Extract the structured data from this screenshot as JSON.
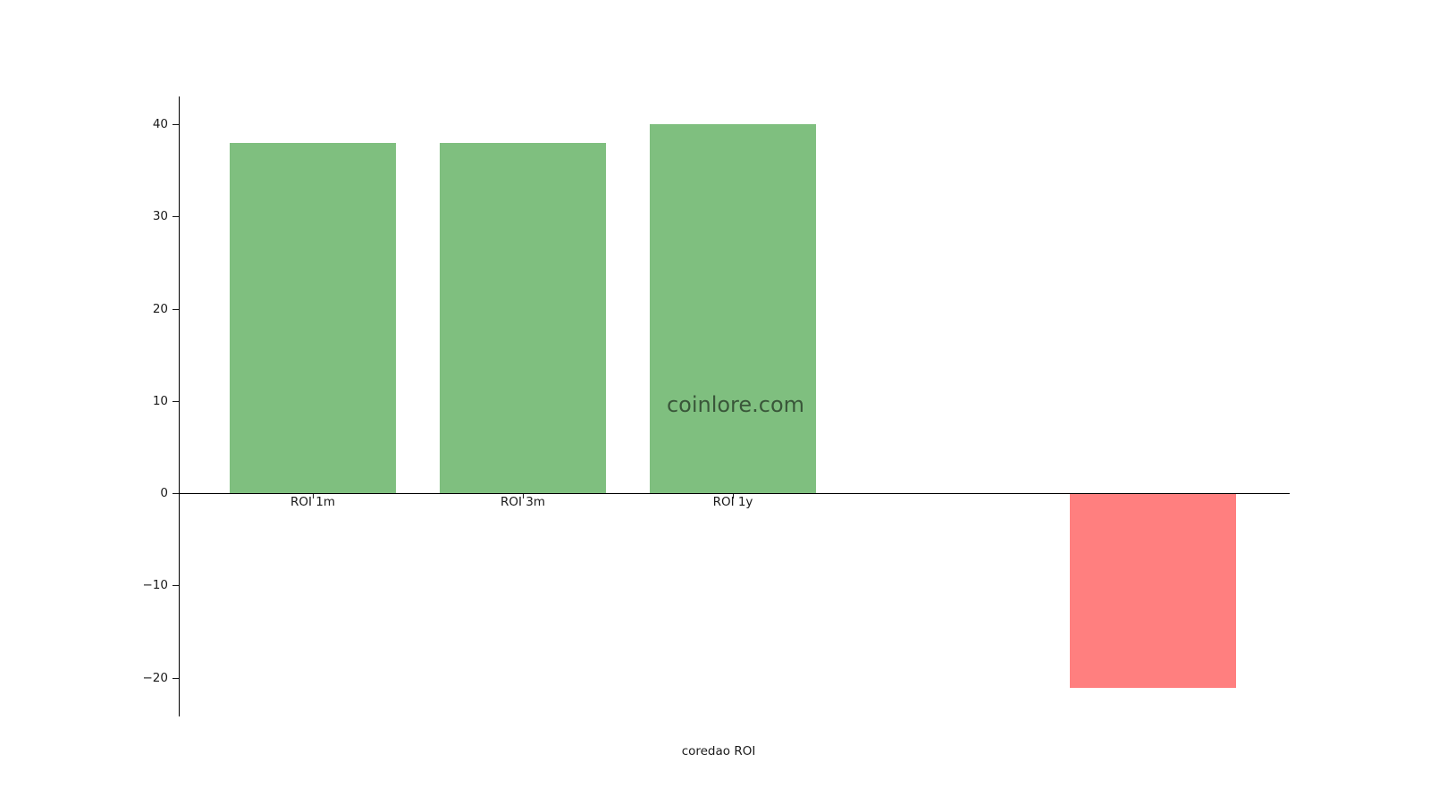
{
  "chart_data": {
    "type": "bar",
    "title": "coredao ROI",
    "xlabel": "coredao ROI",
    "watermark": "coinlore.com",
    "bars": [
      {
        "label": "ROI 1m",
        "value": 38,
        "slot": 0,
        "color": "#7fbf7f"
      },
      {
        "label": "ROI 3m",
        "value": 38,
        "slot": 1,
        "color": "#7fbf7f"
      },
      {
        "label": "ROI 1y",
        "value": 40,
        "slot": 2,
        "color": "#7fbf7f"
      },
      {
        "label": "",
        "value": -21,
        "slot": 4,
        "color": "#ff7f7f"
      }
    ],
    "y_ticks": [
      {
        "value": 40,
        "label": "40"
      },
      {
        "value": 30,
        "label": "30"
      },
      {
        "value": 20,
        "label": "20"
      },
      {
        "value": 10,
        "label": "10"
      },
      {
        "value": 0,
        "label": "0"
      },
      {
        "value": -10,
        "label": "−10"
      },
      {
        "value": -20,
        "label": "−20"
      }
    ],
    "ylim": [
      -24.2,
      43
    ],
    "grid": false,
    "legend": false,
    "colors": {
      "positive_bar": "#7fbf7f",
      "negative_bar": "#ff7f7f",
      "axis": "#000000",
      "text": "#1a1a1a",
      "background": "#ffffff"
    }
  }
}
